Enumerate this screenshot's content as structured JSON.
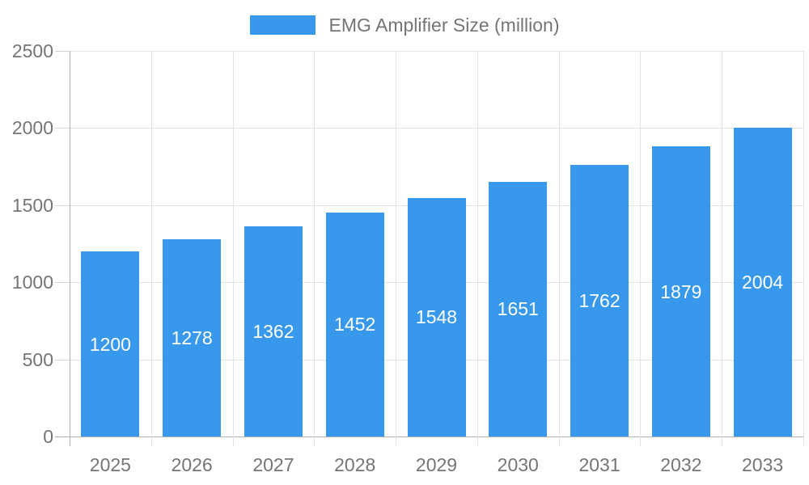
{
  "legend": {
    "label": "EMG Amplifier Size (million)"
  },
  "chart_data": {
    "type": "bar",
    "title": "",
    "categories": [
      "2025",
      "2026",
      "2027",
      "2028",
      "2029",
      "2030",
      "2031",
      "2032",
      "2033"
    ],
    "series": [
      {
        "name": "EMG Amplifier Size (million)",
        "values": [
          1200,
          1278,
          1362,
          1452,
          1548,
          1651,
          1762,
          1879,
          2004
        ]
      }
    ],
    "data_labels": [
      "1200",
      "1278",
      "1362",
      "1452",
      "1548",
      "1651",
      "1762",
      "1879",
      "2004"
    ],
    "xlabel": "",
    "ylabel": "",
    "ylim": [
      0,
      2500
    ],
    "yticks": [
      0,
      500,
      1000,
      1500,
      2000,
      2500
    ],
    "ytick_labels": [
      "0",
      "500",
      "1000",
      "1500",
      "2000",
      "2500"
    ],
    "grid": true,
    "legend_position": "top-center",
    "colors": {
      "bar": "#3899EC",
      "data_label": "#ffffff",
      "axis_text": "#757575",
      "grid_line": "#e4e4e4",
      "axis_line": "#b0b0b0",
      "tick_line": "#d2d2d2",
      "background": "#ffffff"
    }
  }
}
